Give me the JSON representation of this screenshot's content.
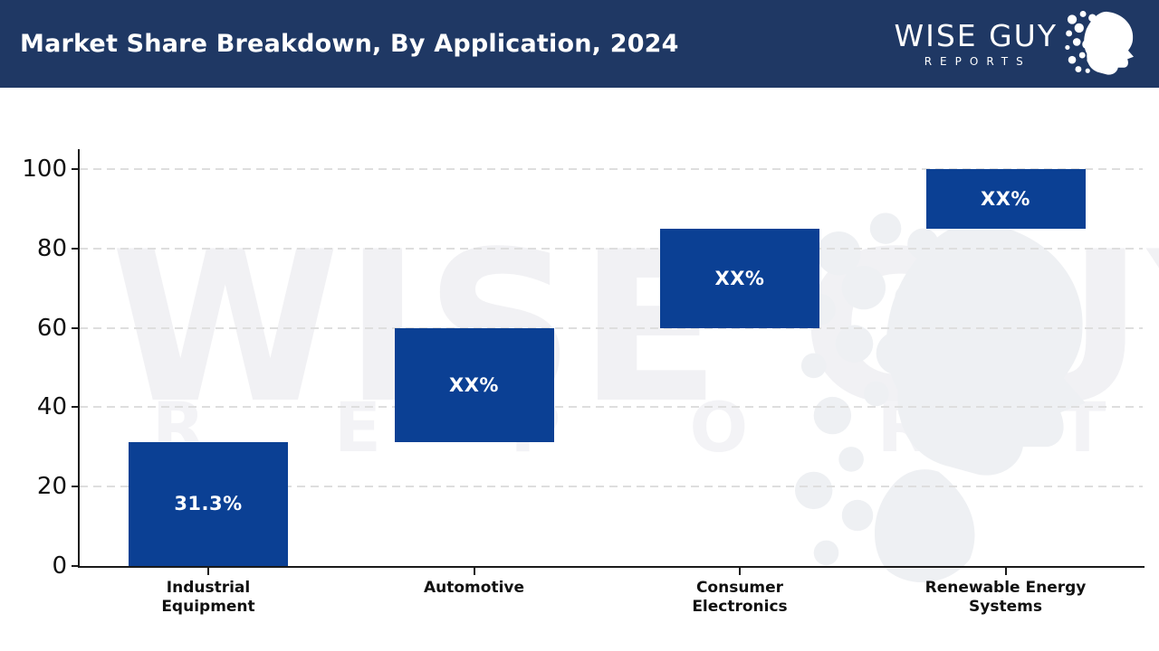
{
  "header": {
    "title": "Market Share Breakdown, By Application, 2024",
    "logo": {
      "line1": "WISE GUY",
      "line2": "REPORTS",
      "icon": "dotted-face-profile"
    }
  },
  "watermark": {
    "line1": "WISE GUY",
    "line2": "R E P O R T S",
    "icon": "dotted-face-profile"
  },
  "colors": {
    "header_bg": "#1f3864",
    "bar": "#0b4094",
    "bar_label_text": "#ffffff",
    "grid": "#dedede",
    "axis": "#1a1a1a",
    "watermark": "#f1f1f4",
    "page_bg": "#ffffff"
  },
  "chart_data": {
    "type": "bar",
    "subtype": "cumulative-waterfall-floating-bars",
    "title": "Market Share Breakdown, By Application, 2024",
    "categories": [
      "Industrial Equipment",
      "Automotive",
      "Consumer Electronics",
      "Renewable Energy Systems"
    ],
    "category_lines": [
      [
        "Industrial",
        "Equipment"
      ],
      [
        "Automotive"
      ],
      [
        "Consumer",
        "Electronics"
      ],
      [
        "Renewable Energy",
        "Systems"
      ]
    ],
    "segments": [
      {
        "category": "Industrial Equipment",
        "start": 0,
        "end": 31.3,
        "label": "31.3%"
      },
      {
        "category": "Automotive",
        "start": 31.3,
        "end": 60,
        "label": "XX%"
      },
      {
        "category": "Consumer Electronics",
        "start": 60,
        "end": 85,
        "label": "XX%"
      },
      {
        "category": "Renewable Energy Systems",
        "start": 85,
        "end": 100,
        "label": "XX%"
      }
    ],
    "xlabel": "",
    "ylabel": "",
    "ylim": [
      0,
      100
    ],
    "yticks": [
      0,
      20,
      40,
      60,
      80,
      100
    ],
    "grid": "dashed-horizontal",
    "legend": null
  }
}
